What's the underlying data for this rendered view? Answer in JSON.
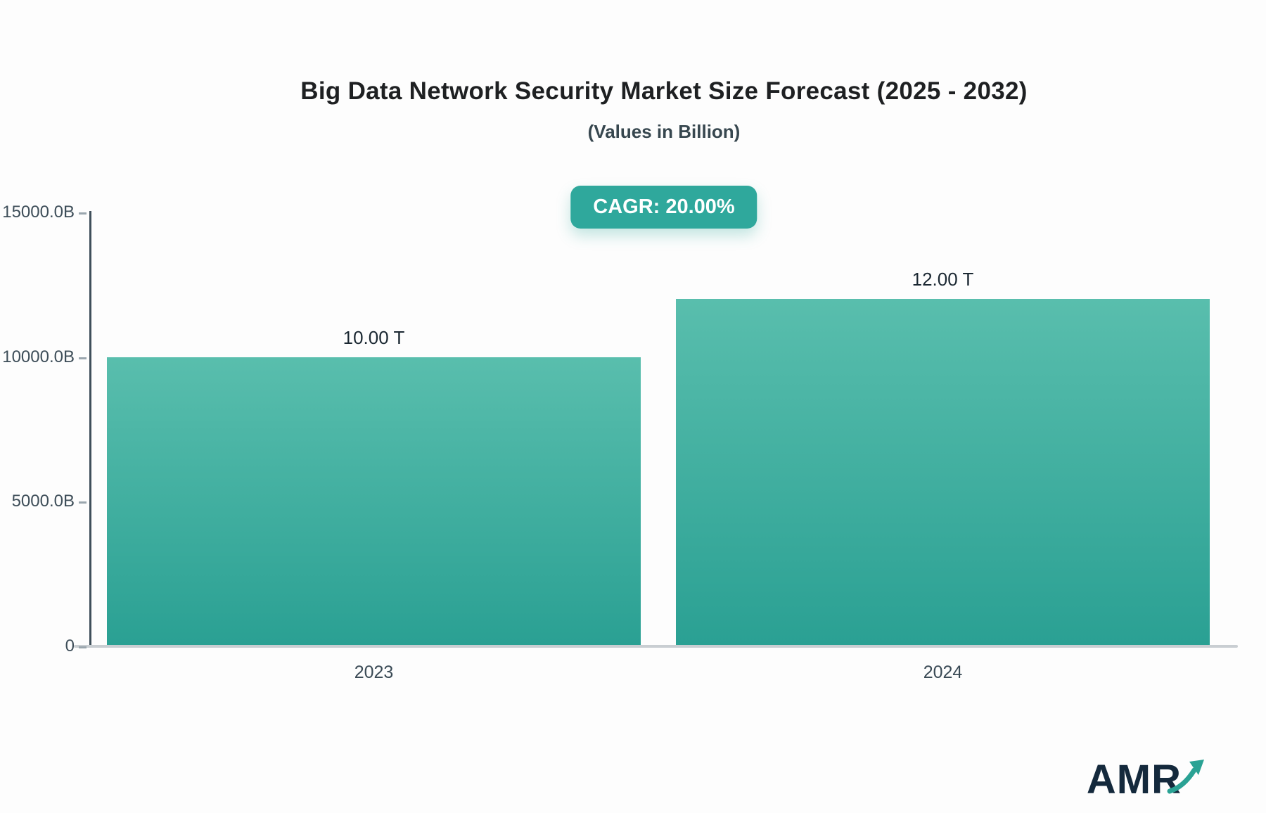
{
  "header": {
    "title": "Big Data Network Security Market Size Forecast (2025 - 2032)",
    "subtitle": "(Values in Billion)",
    "cagr_badge": "CAGR: 20.00%"
  },
  "chart_data": {
    "type": "bar",
    "title": "Big Data Network Security Market Size Forecast (2025 - 2032)",
    "subtitle": "(Values in Billion)",
    "annotation": "CAGR: 20.00%",
    "categories": [
      "2023",
      "2024"
    ],
    "values": [
      10000,
      12000
    ],
    "value_labels": [
      "10.00 T",
      "12.00 T"
    ],
    "unit": "Billion",
    "ylim": [
      0,
      15000
    ],
    "yticks": [
      {
        "value": 0,
        "label": "0"
      },
      {
        "value": 5000,
        "label": "5000.0B"
      },
      {
        "value": 10000,
        "label": "10000.0B"
      },
      {
        "value": 15000,
        "label": "15000.0B"
      }
    ],
    "grid": false,
    "legend": "none",
    "colors": {
      "bar_top": "#59bead",
      "bar_bottom": "#2aa093",
      "badge_bg": "#2fa89c",
      "badge_text": "#ffffff",
      "axis": "#3f4f5a",
      "baseline": "#c9ced2",
      "title_text": "#1e2022",
      "label_text": "#3a4a55"
    }
  },
  "logo": {
    "text": "AMR",
    "arrow_icon": "trend-up-arrow",
    "text_color": "#14293c",
    "arrow_color": "#2aa294"
  }
}
